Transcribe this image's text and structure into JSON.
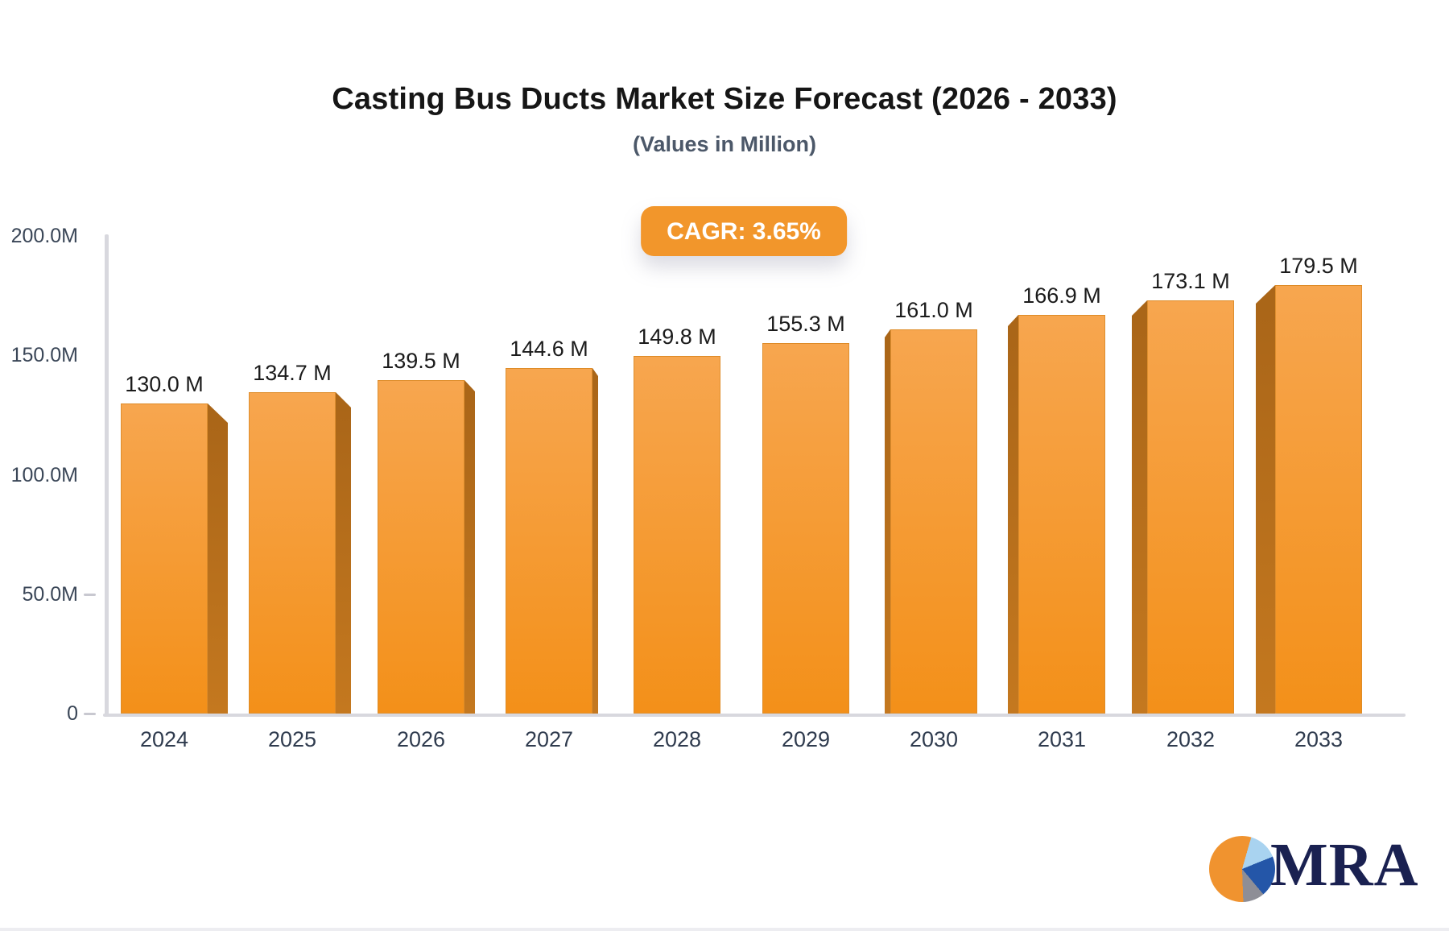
{
  "header": {
    "title": "Casting Bus Ducts Market Size Forecast (2026 - 2033)",
    "subtitle": "(Values in Million)",
    "cagr_label": "CAGR: 3.65%"
  },
  "chart_data": {
    "type": "bar",
    "title": "Casting Bus Ducts Market Size Forecast (2026 - 2033)",
    "subtitle": "(Values in Million)",
    "unit": "Million",
    "cagr": "3.65%",
    "categories": [
      "2024",
      "2025",
      "2026",
      "2027",
      "2028",
      "2029",
      "2030",
      "2031",
      "2032",
      "2033"
    ],
    "values": [
      130.0,
      134.7,
      139.5,
      144.6,
      149.8,
      155.3,
      161.0,
      166.9,
      173.1,
      179.5
    ],
    "value_labels": [
      "130.0 M",
      "134.7 M",
      "139.5 M",
      "144.6 M",
      "149.8 M",
      "155.3 M",
      "161.0 M",
      "166.9 M",
      "173.1 M",
      "179.5 M"
    ],
    "ylim": [
      0,
      200
    ],
    "y_ticks": [
      {
        "label": "200.0M",
        "value": 200,
        "dash": false
      },
      {
        "label": "150.0M",
        "value": 150,
        "dash": false
      },
      {
        "label": "100.0M",
        "value": 100,
        "dash": false
      },
      {
        "label": "50.0M",
        "value": 50,
        "dash": true
      },
      {
        "label": "0",
        "value": 0,
        "dash": true
      }
    ],
    "grid": false,
    "legend": false,
    "bar_style": "3d-perspective"
  },
  "colors": {
    "bar_front_top": "#F7A64F",
    "bar_front_bottom": "#F39019",
    "bar_side_top": "#A96518",
    "bar_side_bottom": "#C4781F",
    "badge_bg": "#F2962B",
    "axis_line": "#D8D8DE",
    "tick_text": "#3A4657",
    "value_text": "#1B1B1B",
    "title_text": "#161616",
    "subtitle_text": "#4C5869",
    "logo_navy": "#1A2151",
    "logo_orange": "#F0932F",
    "logo_lightblue": "#A9D3F0",
    "logo_blue": "#2456A8",
    "logo_gray": "#8E8E96"
  },
  "logo": {
    "text": "MRA"
  }
}
